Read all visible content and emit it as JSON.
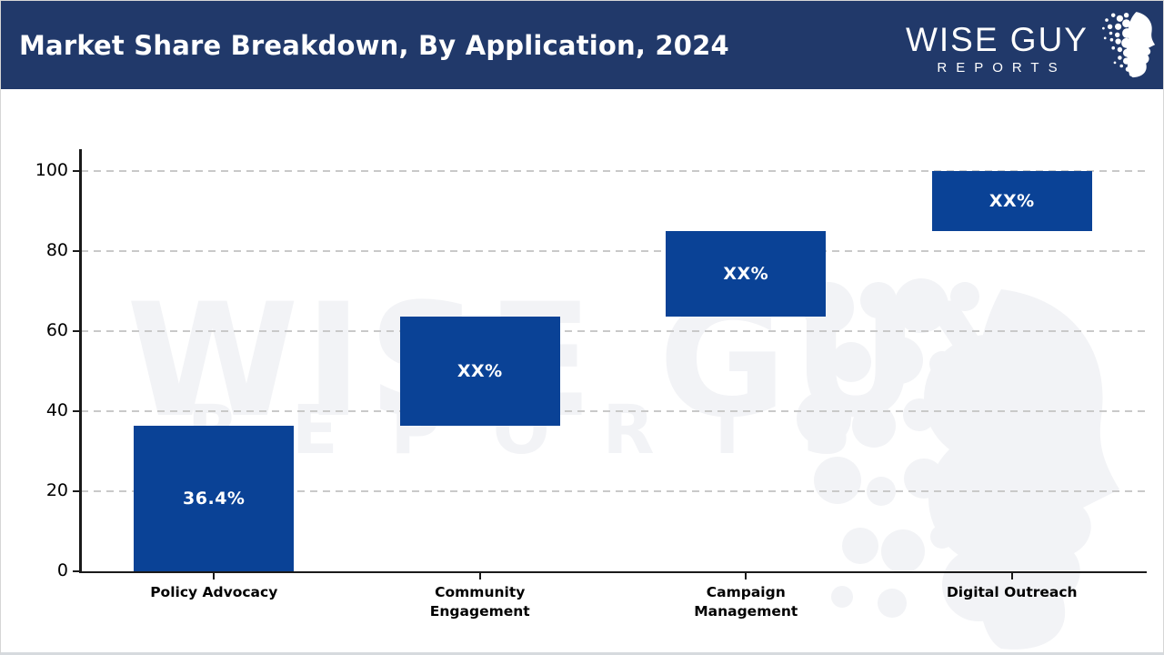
{
  "header": {
    "title": "Market Share Breakdown, By Application, 2024",
    "logo": {
      "line1": "WISE GUY",
      "line2": "REPORTS"
    }
  },
  "watermark": {
    "line1": "WISE GUY",
    "line2": "REPORTS"
  },
  "chart_data": {
    "type": "bar",
    "subtype": "floating-waterfall",
    "title": "Market Share Breakdown, By Application, 2024",
    "categories": [
      "Policy Advocacy",
      "Community Engagement",
      "Campaign Management",
      "Digital Outreach"
    ],
    "series": [
      {
        "name": "Market share (%)",
        "segments": [
          {
            "category": "Policy Advocacy",
            "start": 0,
            "end": 36.4,
            "label": "36.4%"
          },
          {
            "category": "Community Engagement",
            "start": 36.4,
            "end": 63.6,
            "label": "XX%"
          },
          {
            "category": "Campaign Management",
            "start": 63.6,
            "end": 85.0,
            "label": "XX%"
          },
          {
            "category": "Digital Outreach",
            "start": 85.0,
            "end": 100.0,
            "label": "XX%"
          }
        ]
      }
    ],
    "xlabel": "",
    "ylabel": "",
    "ylim": [
      0,
      100
    ],
    "yticks": [
      0,
      20,
      40,
      60,
      80,
      100
    ],
    "grid": "horizontal-dashed",
    "legend": "none",
    "bar_color": "#0a4296",
    "bar_label_color": "#ffffff"
  },
  "colors": {
    "header_bg": "#21396a",
    "header_text": "#ffffff",
    "bar": "#0a4296",
    "gridline": "#c9c9c9",
    "axis": "#1a1a1a",
    "watermark": "#f2f3f6",
    "tick_text": "#000000"
  }
}
